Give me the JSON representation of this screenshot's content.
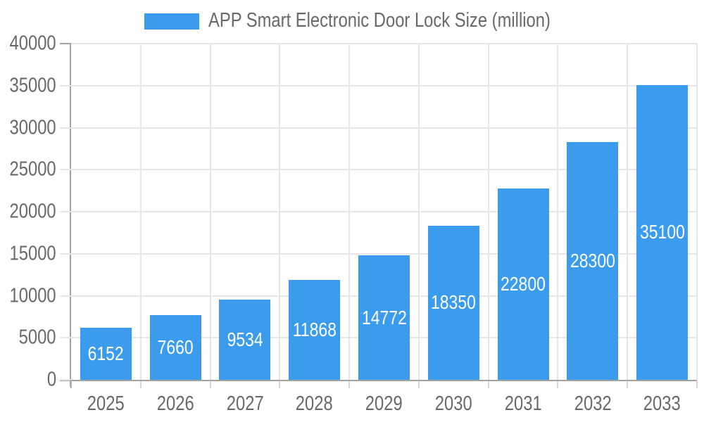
{
  "chart_data": {
    "type": "bar",
    "title": "APP Smart Electronic Door Lock Size (million)",
    "legend": [
      "APP Smart Electronic Door Lock Size (million)"
    ],
    "legend_position": "top-center",
    "categories": [
      "2025",
      "2026",
      "2027",
      "2028",
      "2029",
      "2030",
      "2031",
      "2032",
      "2033"
    ],
    "series": [
      {
        "name": "APP Smart Electronic Door Lock Size (million)",
        "values": [
          6152,
          7660,
          9534,
          11868,
          14772,
          18350,
          22800,
          28300,
          35100
        ]
      }
    ],
    "values": [
      6152,
      7660,
      9534,
      11868,
      14772,
      18350,
      22800,
      28300,
      35100
    ],
    "xlabel": "",
    "ylabel": "",
    "ylim": [
      0,
      40000
    ],
    "yticks": [
      0,
      5000,
      10000,
      15000,
      20000,
      25000,
      30000,
      35000,
      40000
    ],
    "grid": true,
    "value_labels": {
      "position": "inside-center",
      "color": "#FFFFFF"
    },
    "colors": {
      "bar": "#3B9CEE",
      "grid": "#E6E6E6",
      "axis": "#A2A2A2",
      "tick_label": "#696969",
      "value_label": "#FFFFFF",
      "background": "#FFFFFF"
    }
  }
}
